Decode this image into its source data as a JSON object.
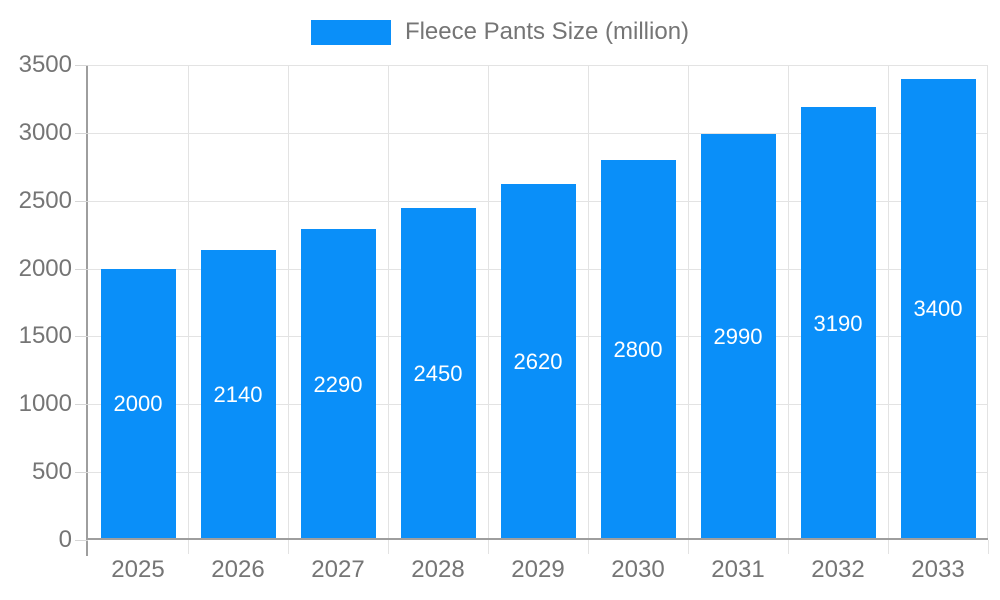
{
  "chart_data": {
    "type": "bar",
    "title": "Fleece Pants Size (million)",
    "legend_position": "top",
    "categories": [
      "2025",
      "2026",
      "2027",
      "2028",
      "2029",
      "2030",
      "2031",
      "2032",
      "2033"
    ],
    "values": [
      2000,
      2140,
      2290,
      2450,
      2620,
      2800,
      2990,
      3190,
      3400
    ],
    "bar_value_labels": [
      "2000",
      "2140",
      "2290",
      "2450",
      "2620",
      "2800",
      "2990",
      "3190",
      "3400"
    ],
    "xlabel": "",
    "ylabel": "",
    "ylim": [
      0,
      3500
    ],
    "yticks": [
      0,
      500,
      1000,
      1500,
      2000,
      2500,
      3000,
      3500
    ],
    "ytick_labels": [
      "0",
      "500",
      "1000",
      "1500",
      "2000",
      "2500",
      "3000",
      "3500"
    ],
    "grid": true,
    "colors": {
      "bar": "#0a8ff9",
      "bar_label_text": "#ffffff",
      "axis_text": "#757575",
      "gridline": "#e3e3e3",
      "axis_line": "#9e9e9e",
      "background": "#ffffff"
    }
  }
}
